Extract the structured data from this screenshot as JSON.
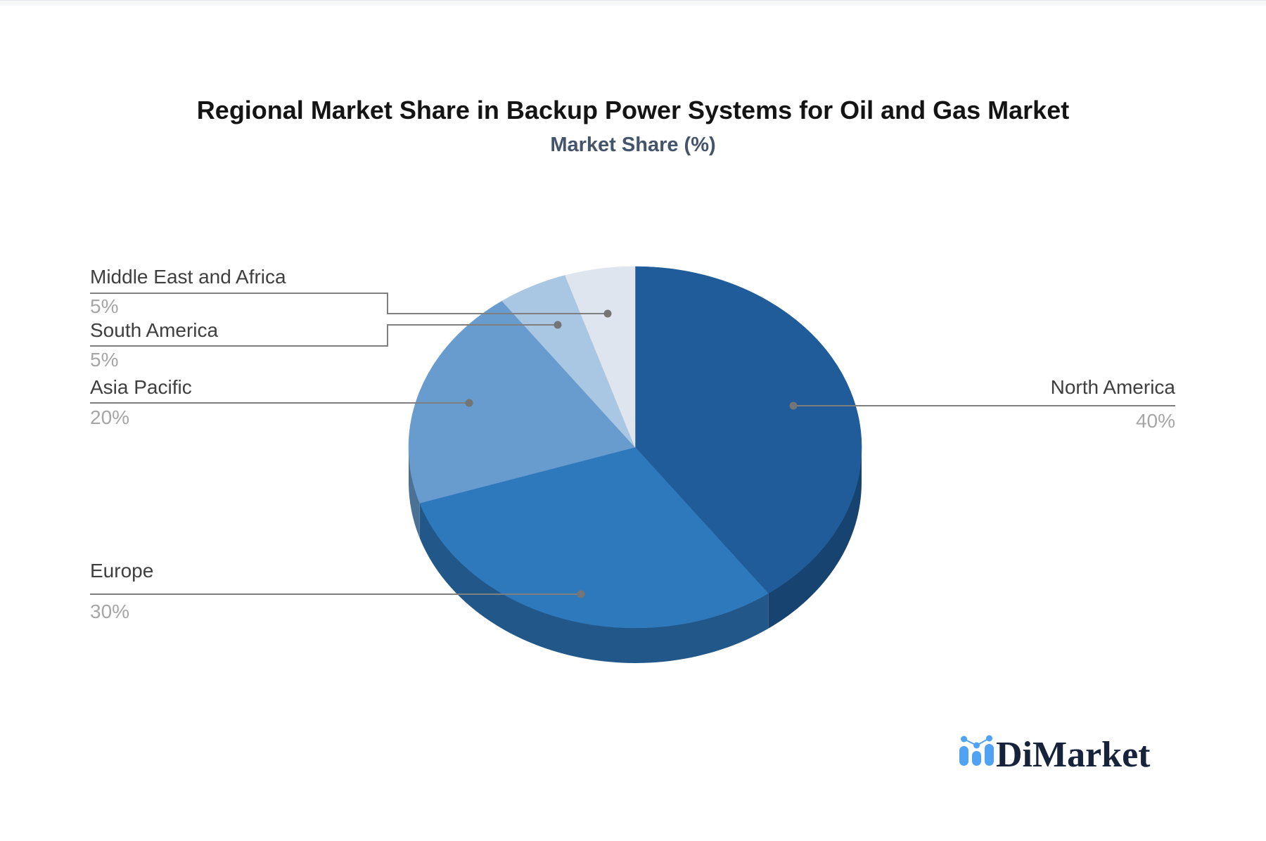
{
  "page": {
    "background": "#ffffff"
  },
  "header": {
    "title": "Regional Market Share in Backup Power Systems for Oil and Gas Market",
    "subtitle": "Market Share (%)"
  },
  "chart_data": {
    "type": "pie",
    "title": "Regional Market Share in Backup Power Systems for Oil and Gas Market",
    "subtitle": "Market Share (%)",
    "unit": "percent",
    "effect": "3d",
    "start_angle_deg": 0,
    "direction": "clockwise",
    "legend_position": "callout-labels",
    "categories": [
      "North America",
      "Europe",
      "Asia Pacific",
      "South America",
      "Middle East and Africa"
    ],
    "values": [
      40,
      30,
      20,
      5,
      5
    ],
    "slices": [
      {
        "label": "North America",
        "value": 40,
        "pct_label": "40%",
        "color": "#1F5C99"
      },
      {
        "label": "Europe",
        "value": 30,
        "pct_label": "30%",
        "color": "#2E78BC"
      },
      {
        "label": "Asia Pacific",
        "value": 20,
        "pct_label": "20%",
        "color": "#689BCE"
      },
      {
        "label": "South America",
        "value": 5,
        "pct_label": "5%",
        "color": "#A9C6E3"
      },
      {
        "label": "Middle East and Africa",
        "value": 5,
        "pct_label": "5%",
        "color": "#DEE5EF"
      }
    ],
    "label_color": "#3F3F3F",
    "pct_color": "#A6A6A6",
    "callout_line_color": "#7F7F7F"
  },
  "logo": {
    "text": "DiMarket",
    "icon": "bar-line-chart-icon",
    "icon_color": "#4FA3F2",
    "text_color": "#16233A"
  }
}
